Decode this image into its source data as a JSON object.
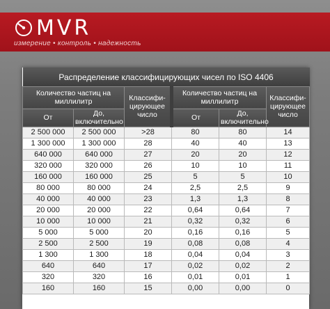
{
  "brand": {
    "logo_text": "MVR",
    "tagline": "измерение • контроль • надежность",
    "logo_icon": "gauge-icon",
    "colors": {
      "banner": "#a8151d",
      "table_header": "#4a4a4a"
    }
  },
  "table": {
    "title": "Распределение классифицирующих чисел по ISO 4406",
    "headers": {
      "particles_per_ml": "Количество частиц на миллилитр",
      "class_number": "Классифи-цирующее число",
      "from": "От",
      "to_inclusive": "До, включительно"
    },
    "rows": [
      {
        "from_l": "2 500 000",
        "to_l": "2 500 000",
        "class_l": ">28",
        "from_r": "80",
        "to_r": "80",
        "class_r": "14"
      },
      {
        "from_l": "1 300 000",
        "to_l": "1 300 000",
        "class_l": "28",
        "from_r": "40",
        "to_r": "40",
        "class_r": "13"
      },
      {
        "from_l": "640 000",
        "to_l": "640 000",
        "class_l": "27",
        "from_r": "20",
        "to_r": "20",
        "class_r": "12"
      },
      {
        "from_l": "320 000",
        "to_l": "320 000",
        "class_l": "26",
        "from_r": "10",
        "to_r": "10",
        "class_r": "11"
      },
      {
        "from_l": "160 000",
        "to_l": "160 000",
        "class_l": "25",
        "from_r": "5",
        "to_r": "5",
        "class_r": "10"
      },
      {
        "from_l": "80 000",
        "to_l": "80 000",
        "class_l": "24",
        "from_r": "2,5",
        "to_r": "2,5",
        "class_r": "9"
      },
      {
        "from_l": "40 000",
        "to_l": "40 000",
        "class_l": "23",
        "from_r": "1,3",
        "to_r": "1,3",
        "class_r": "8"
      },
      {
        "from_l": "20 000",
        "to_l": "20 000",
        "class_l": "22",
        "from_r": "0,64",
        "to_r": "0,64",
        "class_r": "7"
      },
      {
        "from_l": "10 000",
        "to_l": "10 000",
        "class_l": "21",
        "from_r": "0,32",
        "to_r": "0,32",
        "class_r": "6"
      },
      {
        "from_l": "5 000",
        "to_l": "5 000",
        "class_l": "20",
        "from_r": "0,16",
        "to_r": "0,16",
        "class_r": "5"
      },
      {
        "from_l": "2 500",
        "to_l": "2 500",
        "class_l": "19",
        "from_r": "0,08",
        "to_r": "0,08",
        "class_r": "4"
      },
      {
        "from_l": "1 300",
        "to_l": "1 300",
        "class_l": "18",
        "from_r": "0,04",
        "to_r": "0,04",
        "class_r": "3"
      },
      {
        "from_l": "640",
        "to_l": "640",
        "class_l": "17",
        "from_r": "0,02",
        "to_r": "0,02",
        "class_r": "2"
      },
      {
        "from_l": "320",
        "to_l": "320",
        "class_l": "16",
        "from_r": "0,01",
        "to_r": "0,01",
        "class_r": "1"
      },
      {
        "from_l": "160",
        "to_l": "160",
        "class_l": "15",
        "from_r": "0,00",
        "to_r": "0,00",
        "class_r": "0"
      }
    ]
  }
}
